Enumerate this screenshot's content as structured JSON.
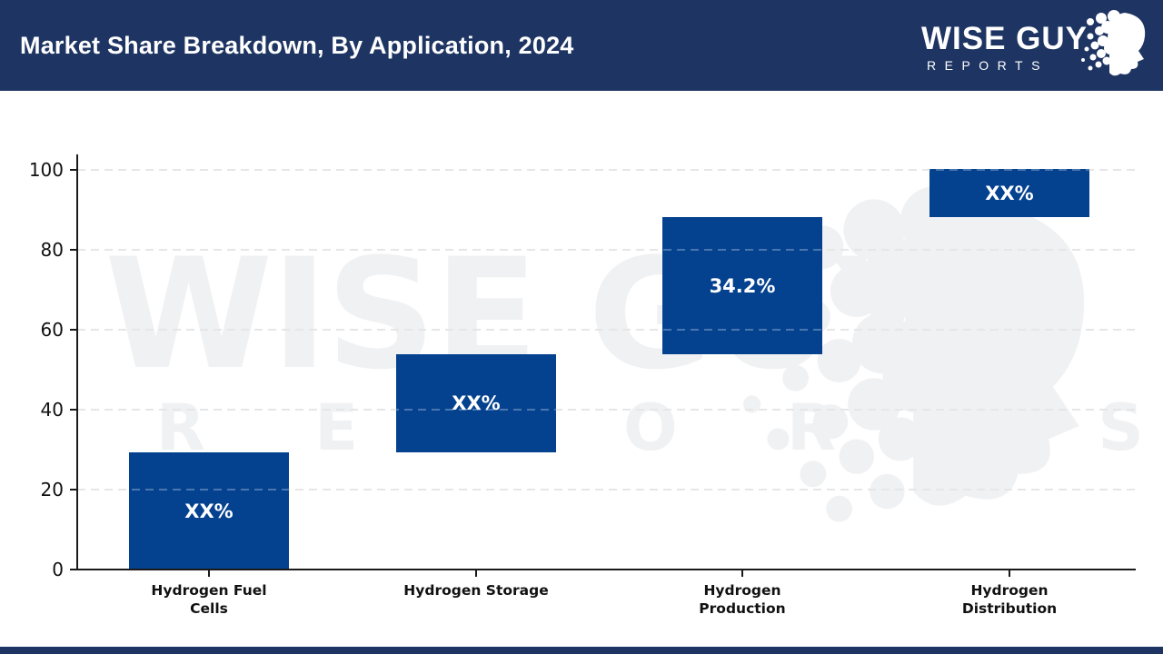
{
  "header": {
    "title": "Market Share Breakdown, By Application, 2024",
    "logo": {
      "line1": "WISE GUY",
      "line2": "REPORTS"
    }
  },
  "watermark": {
    "text": "WISE GUY",
    "reports": "R E P O R T S"
  },
  "colors": {
    "header_bg": "#1e3563",
    "footer_bg": "#1e3563",
    "bar": "#04428f",
    "grid": "#dcdcdc",
    "axis": "#1a1a1a",
    "watermark": "#f0f1f3",
    "bar_label": "#ffffff"
  },
  "chart_data": {
    "type": "bar",
    "subtype": "waterfall",
    "title": "Market Share Breakdown, By Application, 2024",
    "categories": [
      [
        "Hydrogen Fuel",
        "Cells"
      ],
      [
        "Hydrogen Storage"
      ],
      [
        "Hydrogen",
        "Production"
      ],
      [
        "Hydrogen",
        "Distribution"
      ]
    ],
    "segments": [
      {
        "start": 0,
        "value": 29.3,
        "label": "XX%"
      },
      {
        "start": 29.3,
        "value": 24.6,
        "label": "XX%"
      },
      {
        "start": 53.9,
        "value": 34.2,
        "label": "34.2%"
      },
      {
        "start": 88.1,
        "value": 12.1,
        "label": "XX%"
      }
    ],
    "yticks": [
      0,
      20,
      40,
      60,
      80,
      100
    ],
    "ylim": [
      0,
      105
    ],
    "xlabel": "",
    "ylabel": "",
    "grid": "horizontal-dashed",
    "legend": "none"
  }
}
